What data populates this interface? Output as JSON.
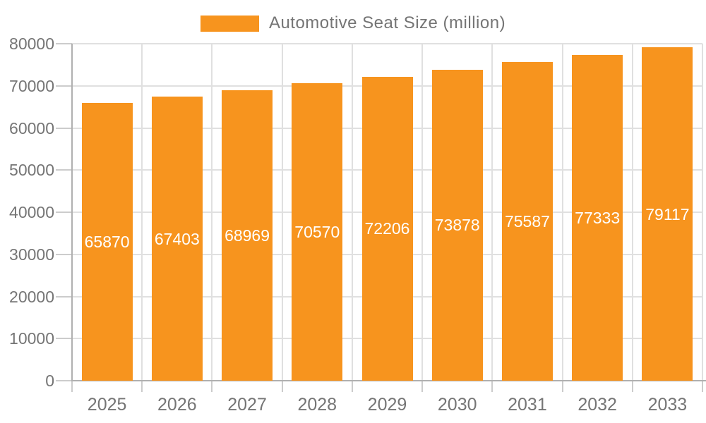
{
  "legend": {
    "label": "Automotive Seat Size (million)"
  },
  "chart_data": {
    "type": "bar",
    "title": "Automotive Seat Size (million)",
    "categories": [
      "2025",
      "2026",
      "2027",
      "2028",
      "2029",
      "2030",
      "2031",
      "2032",
      "2033"
    ],
    "series": [
      {
        "name": "Automotive Seat Size (million)",
        "values": [
          65870,
          67403,
          68969,
          70570,
          72206,
          73878,
          75587,
          77333,
          79117
        ]
      }
    ],
    "values": [
      65870,
      67403,
      68969,
      70570,
      72206,
      73878,
      75587,
      77333,
      79117
    ],
    "xlabel": "",
    "ylabel": "",
    "ylim": [
      0,
      80000
    ],
    "yticks": [
      0,
      10000,
      20000,
      30000,
      40000,
      50000,
      60000,
      70000,
      80000
    ],
    "grid": true,
    "legend_position": "top-center",
    "value_label_position": "inside-middle",
    "colors": {
      "bar": "#f7941e",
      "grid": "#e0e0e0",
      "tick": "#cccccc",
      "axis": "#b0b0b0",
      "text": "#757575",
      "value_label": "#ffffff"
    }
  }
}
